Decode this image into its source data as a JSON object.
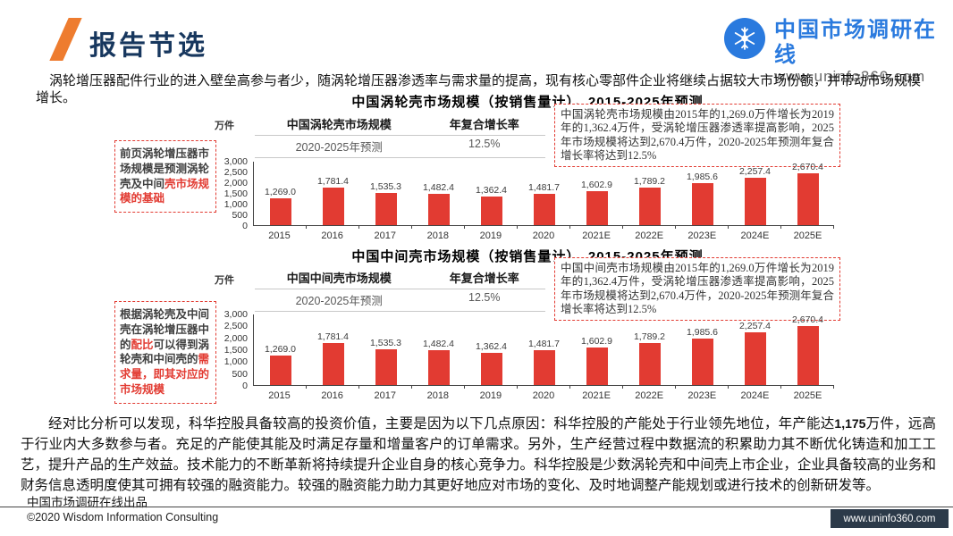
{
  "header": {
    "title": "报告节选",
    "logo": {
      "name": "中国市场调研在线",
      "url": "www.uninfo360.com",
      "icon": "snowflake-icon",
      "brand_color": "#2a7ade"
    }
  },
  "intro": "涡轮增压器配件行业的进入壁垒高参与者少，随涡轮增压器渗透率与需求量的提高，现有核心零部件企业将继续占据较大市场份额，并带动市场规模增长。",
  "chart_data": [
    {
      "type": "bar",
      "title": "中国涡轮壳市场规模（按销售量计），2015-2025年预测",
      "unit": "万件",
      "categories": [
        "2015",
        "2016",
        "2017",
        "2018",
        "2019",
        "2020",
        "2021E",
        "2022E",
        "2023E",
        "2024E",
        "2025E"
      ],
      "values": [
        1269.0,
        1781.4,
        1535.3,
        1482.4,
        1362.4,
        1481.7,
        1602.9,
        1789.2,
        1985.6,
        2257.4,
        2670.4
      ],
      "value_labels": [
        "1,269.0",
        "1,781.4",
        "1,535.3",
        "1,482.4",
        "1,362.4",
        "1,481.7",
        "1,602.9",
        "1,789.2",
        "1,985.6",
        "2,257.4",
        "2,670.4"
      ],
      "ylim": [
        0,
        3000
      ],
      "ytick_labels": [
        "3,000",
        "2,500",
        "2,000",
        "1,500",
        "1,000",
        "500",
        "0"
      ],
      "bar_color": "#e23b32",
      "grid": false,
      "legend": "none",
      "summary_table": {
        "col1_header": "中国涡轮壳市场规模",
        "col1_value": "2020-2025年预测",
        "col2_header": "年复合增长率",
        "col2_value": "12.5%"
      }
    },
    {
      "type": "bar",
      "title": "中国中间壳市场规模（按销售量计），2015-2025年预测",
      "unit": "万件",
      "categories": [
        "2015",
        "2016",
        "2017",
        "2018",
        "2019",
        "2020",
        "2021E",
        "2022E",
        "2023E",
        "2024E",
        "2025E"
      ],
      "values": [
        1269.0,
        1781.4,
        1535.3,
        1482.4,
        1362.4,
        1481.7,
        1602.9,
        1789.2,
        1985.6,
        2257.4,
        2670.4
      ],
      "value_labels": [
        "1,269.0",
        "1,781.4",
        "1,535.3",
        "1,482.4",
        "1,362.4",
        "1,481.7",
        "1,602.9",
        "1,789.2",
        "1,985.6",
        "2,257.4",
        "2,670.4"
      ],
      "ylim": [
        0,
        3000
      ],
      "ytick_labels": [
        "3,000",
        "2,500",
        "2,000",
        "1,500",
        "1,000",
        "500",
        "0"
      ],
      "bar_color": "#e23b32",
      "grid": false,
      "legend": "none",
      "summary_table": {
        "col1_header": "中国中间壳市场规模",
        "col1_value": "2020-2025年预测",
        "col2_header": "年复合增长率",
        "col2_value": "12.5%"
      }
    }
  ],
  "annotations": {
    "left_box_1": {
      "segments": [
        {
          "text": "前页涡轮增压器市场规模是预测涡轮壳及中间",
          "color": "dark"
        },
        {
          "text": "壳市场规模的基础",
          "color": "red"
        }
      ]
    },
    "left_box_2": {
      "segments": [
        {
          "text": "根据涡轮壳及中间壳在涡轮增压器中的",
          "color": "dark"
        },
        {
          "text": "配比",
          "color": "red"
        },
        {
          "text": "可以得到涡轮壳和中间壳的",
          "color": "dark"
        },
        {
          "text": "需求量，即其对应的市场规模",
          "color": "red"
        }
      ]
    },
    "right_box_1": "中国涡轮壳市场规模由2015年的1,269.0万件增长为2019年的1,362.4万件，受涡轮增压器渗透率提高影响，2025年市场规模将达到2,670.4万件，2020-2025年预测年复合增长率将达到12.5%",
    "right_box_2": "中国中间壳市场规模由2015年的1,269.0万件增长为2019年的1,362.4万件，受涡轮增压器渗透率提高影响，2025年市场规模将达到2,670.4万件，2020-2025年预测年复合增长率将达到12.5%"
  },
  "bottom_paragraph": {
    "part1": "经对比分析可以发现，科华控股具备较高的投资价值，主要是因为以下几点原因：科华控股的产能处于行业领先地位，年产能达",
    "bold": "1,175",
    "part2": "万件，远高于行业内大多数参与者。充足的产能使其能及时满足存量和增量客户的订单需求。另外，生产经营过程中数据流的积累助力其不断优化铸造和加工工艺，提升产品的生产效益。技术能力的不断革新将持续提升企业自身的核心竞争力。科华控股是少数涡轮壳和中间壳上市企业，企业具备较高的业务和财务信息透明度使其可拥有较强的融资能力。较强的融资能力助力其更好地应对市场的变化、及时地调整产能规划或进行技术的创新研发等。"
  },
  "footer": {
    "produced_by": "中国市场调研在线出品",
    "copyright": "©2020 Wisdom Information Consulting",
    "site_badge": "www.uninfo360.com"
  }
}
